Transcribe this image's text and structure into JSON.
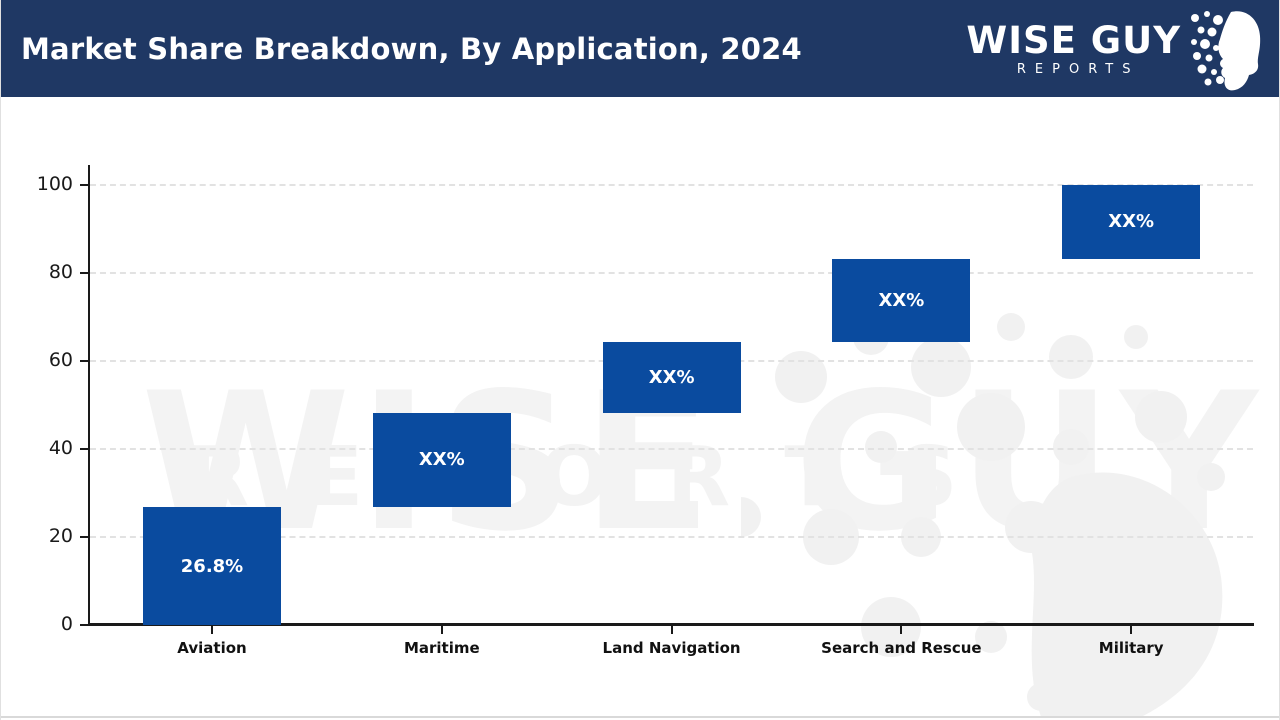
{
  "header": {
    "title": "Market Share Breakdown, By Application, 2024",
    "logo": {
      "line1": "WISE GUY",
      "line2": "REPORTS"
    }
  },
  "watermark": {
    "line1": "WISE GUY",
    "line2": "REPORTS"
  },
  "colors": {
    "header_background": "#1f3864",
    "bar": "#0a4b9f",
    "bar_label": "#ffffff",
    "gridline": "#e2e2e2",
    "axis": "#1a1a1a",
    "watermark": "#f3f3f3"
  },
  "chart_data": {
    "type": "bar",
    "subtype": "waterfall",
    "title": "Market Share Breakdown, By Application, 2024",
    "xlabel": "",
    "ylabel": "",
    "categories": [
      "Aviation",
      "Maritime",
      "Land Navigation",
      "Search and Rescue",
      "Military"
    ],
    "segments": [
      {
        "category": "Aviation",
        "start": 0,
        "end": 26.8,
        "label": "26.8%"
      },
      {
        "category": "Maritime",
        "start": 26.8,
        "end": 48.2,
        "label": "XX%"
      },
      {
        "category": "Land Navigation",
        "start": 48.2,
        "end": 64.3,
        "label": "XX%"
      },
      {
        "category": "Search and Rescue",
        "start": 64.3,
        "end": 83.2,
        "label": "XX%"
      },
      {
        "category": "Military",
        "start": 83.2,
        "end": 100,
        "label": "XX%"
      }
    ],
    "y_ticks": [
      0,
      20,
      40,
      60,
      80,
      100
    ],
    "ylim": [
      0,
      104.5
    ],
    "grid": true,
    "grid_style": "dashed",
    "legend": "none"
  }
}
